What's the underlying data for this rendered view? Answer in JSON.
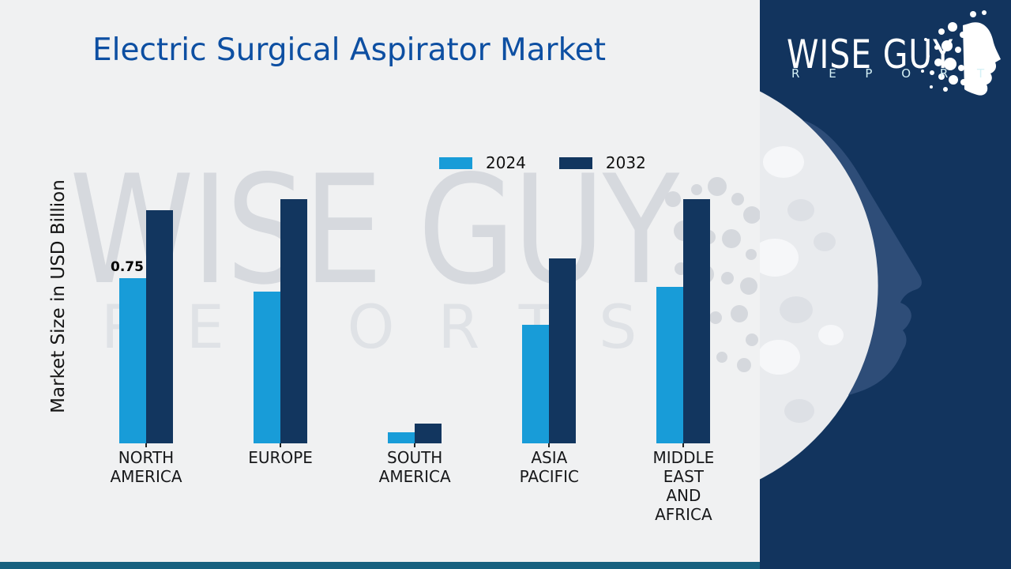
{
  "title": "Electric Surgical Aspirator Market",
  "ylabel": "Market Size in USD Billion",
  "legend": {
    "items": [
      {
        "label": "2024",
        "color": "#189cd8"
      },
      {
        "label": "2032",
        "color": "#12365f"
      }
    ]
  },
  "watermark": {
    "line1": "WISE GUY",
    "line2": "REPORTS"
  },
  "logo": {
    "brand": "WISE GUY",
    "sub": "R E P O R T S"
  },
  "colors": {
    "background": "#f0f1f2",
    "panel_navy": "#12345e",
    "panel_circle": "#e9ebee",
    "panel_face": "#2e4d78",
    "title_blue": "#0d4fa2",
    "bar_2024": "#189cd8",
    "bar_2032": "#12365f",
    "bottom_bar": "#16607f",
    "watermark_gray": "#d6d9de"
  },
  "chart_data": {
    "type": "bar",
    "title": "Electric Surgical Aspirator Market",
    "xlabel": "",
    "ylabel": "Market Size in USD Billion",
    "categories": [
      "NORTH AMERICA",
      "EUROPE",
      "SOUTH AMERICA",
      "ASIA PACIFIC",
      "MIDDLE EAST AND AFRICA"
    ],
    "category_lines": [
      [
        "NORTH",
        "AMERICA"
      ],
      [
        "EUROPE"
      ],
      [
        "SOUTH",
        "AMERICA"
      ],
      [
        "ASIA",
        "PACIFIC"
      ],
      [
        "MIDDLE",
        "EAST",
        "AND",
        "AFRICA"
      ]
    ],
    "series": [
      {
        "name": "2024",
        "color": "#189cd8",
        "values": [
          0.75,
          0.69,
          0.05,
          0.54,
          0.71
        ]
      },
      {
        "name": "2032",
        "color": "#12365f",
        "values": [
          1.06,
          1.11,
          0.09,
          0.84,
          1.11
        ]
      }
    ],
    "annotations": [
      {
        "series": "2024",
        "category": "NORTH AMERICA",
        "text": "0.75"
      }
    ],
    "ylim": [
      0,
      1.2
    ],
    "grid": false,
    "legend_position": "upper center",
    "axis_visible": false
  }
}
